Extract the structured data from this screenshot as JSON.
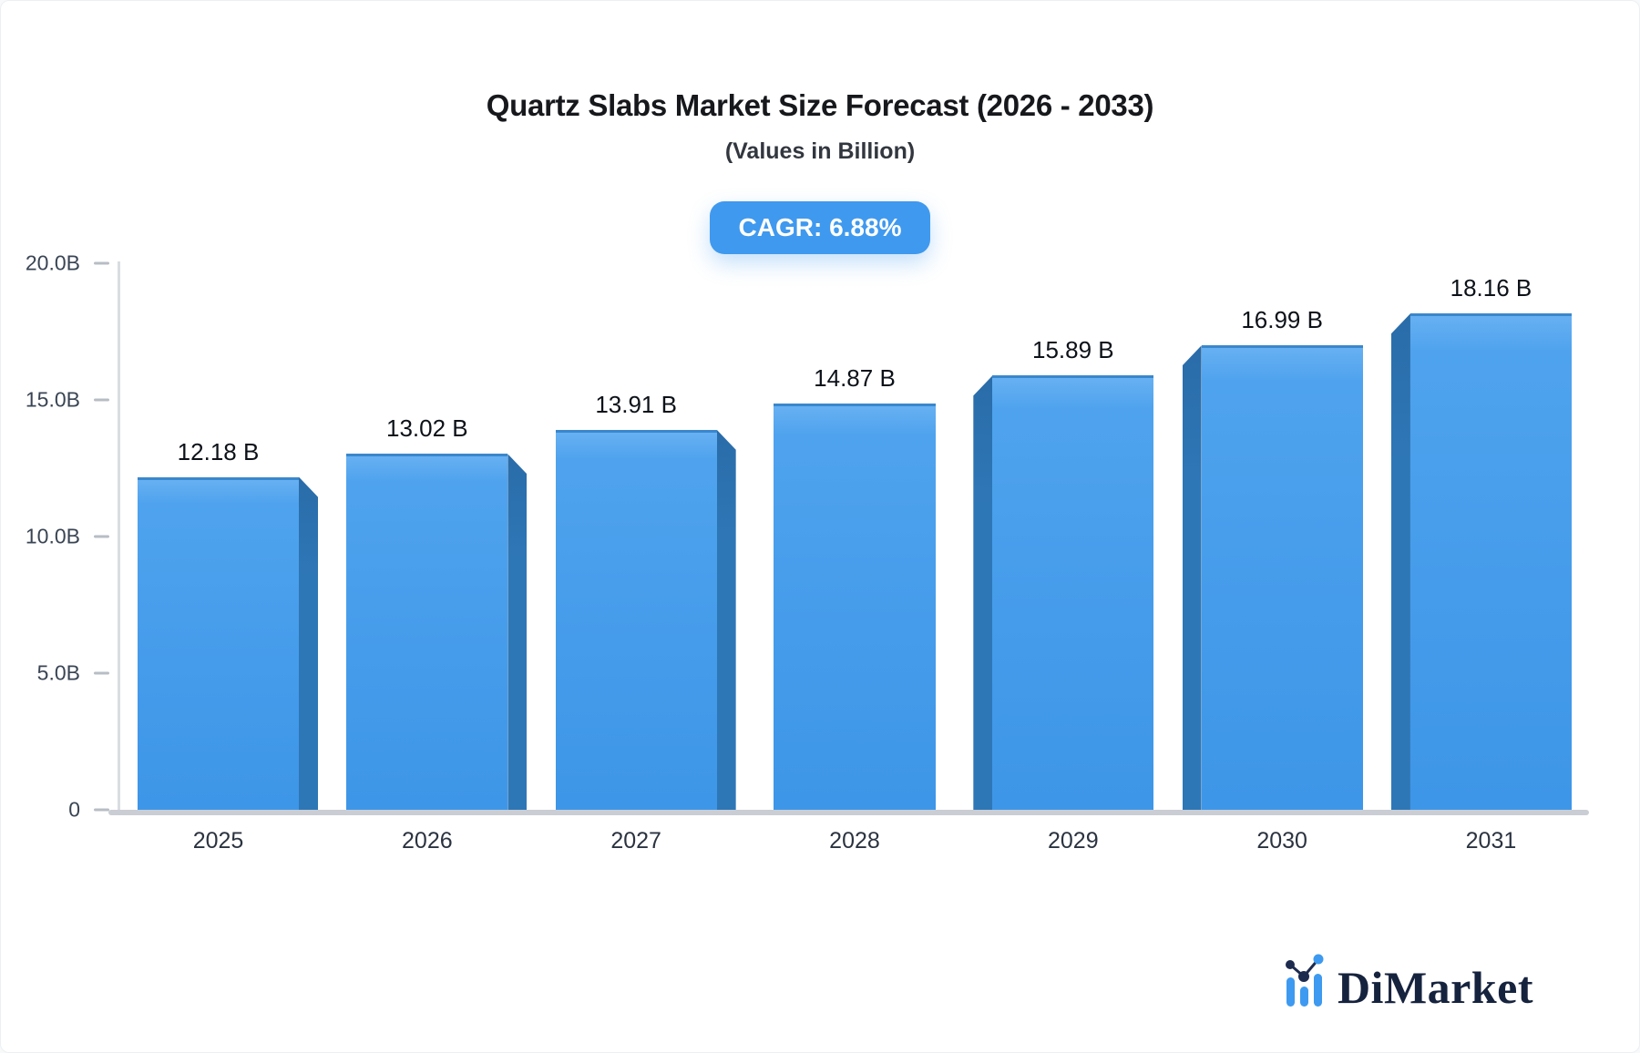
{
  "header": {
    "title": "Quartz Slabs Market Size Forecast (2026 - 2033)",
    "subtitle": "(Values in Billion)",
    "cagr_label": "CAGR: 6.88%"
  },
  "chart_data": {
    "type": "bar",
    "categories": [
      "2025",
      "2026",
      "2027",
      "2028",
      "2029",
      "2030",
      "2031"
    ],
    "values": [
      12.18,
      13.02,
      13.91,
      14.87,
      15.89,
      16.99,
      18.16
    ],
    "bar_labels": [
      "12.18 B",
      "13.02 B",
      "13.91 B",
      "14.87 B",
      "15.89 B",
      "16.99 B",
      "18.16 B"
    ],
    "title": "Quartz Slabs Market Size Forecast (2026 - 2033)",
    "subtitle": "(Values in Billion)",
    "cagr": "6.88%",
    "xlabel": "",
    "ylabel": "",
    "ylim": [
      0,
      20
    ],
    "yticks": [
      0,
      5,
      10,
      15,
      20
    ],
    "ytick_labels": [
      "0",
      "5.0B",
      "10.0B",
      "15.0B",
      "20.0B"
    ],
    "grid": false,
    "legend": false,
    "bar_color": "#459cea",
    "bar_side_color": "#2e77b7"
  },
  "footer": {
    "brand": "DiMarket"
  },
  "colors": {
    "accent": "#3f99ee",
    "badge_text": "#ffffff",
    "title_text": "#16181c",
    "axis_text": "#3a4554",
    "logo_text": "#16233e",
    "logo_blue": "#3d9af0",
    "logo_navy": "#1d2b4f"
  }
}
